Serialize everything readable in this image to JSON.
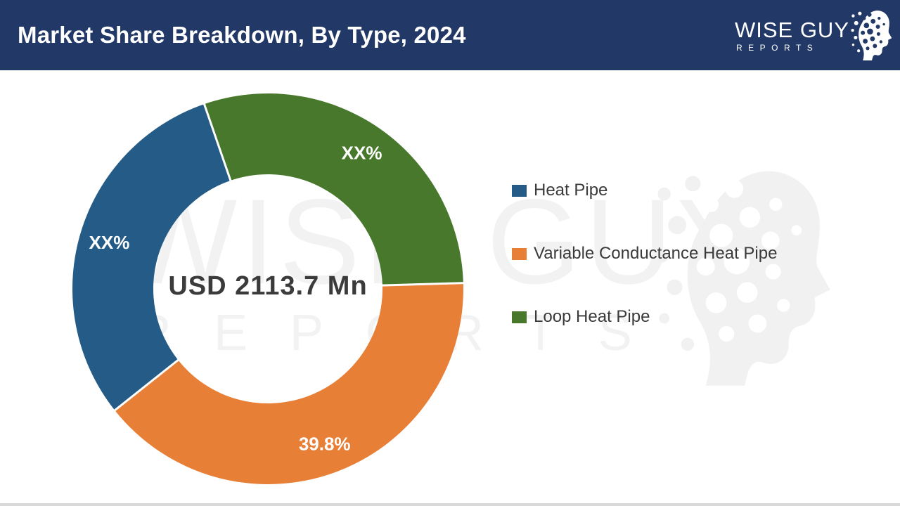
{
  "header": {
    "title": "Market Share Breakdown, By Type, 2024",
    "logo": {
      "name": "WISE GUY",
      "subtitle": "REPORTS"
    }
  },
  "watermark": {
    "line1": "WISE GUY",
    "line2": "REPORTS"
  },
  "chart_data": {
    "type": "pie",
    "subtype": "donut",
    "title": "Market Share Breakdown, By Type, 2024",
    "center_label": "USD 2113.7 Mn",
    "legend_position": "right",
    "start_angle_deg": -19,
    "draw_order": [
      2,
      1,
      0
    ],
    "segments": [
      {
        "label": "Heat Pipe",
        "display_value": "XX%",
        "pct_drawn": 30.4,
        "color": "#245C87"
      },
      {
        "label": "Variable Conductance Heat Pipe",
        "display_value": "39.8%",
        "pct_drawn": 39.8,
        "color": "#E87F37"
      },
      {
        "label": "Loop Heat Pipe",
        "display_value": "XX%",
        "pct_drawn": 29.8,
        "color": "#47782B"
      }
    ]
  },
  "colors": {
    "header_bg": "#223866",
    "center_text": "#3B3B3B",
    "legend_text": "#3A3A3A",
    "watermark": "#F2F2F2",
    "footer_bar": "#D9D9D9",
    "segment_label_text": "#FFFFFF"
  }
}
